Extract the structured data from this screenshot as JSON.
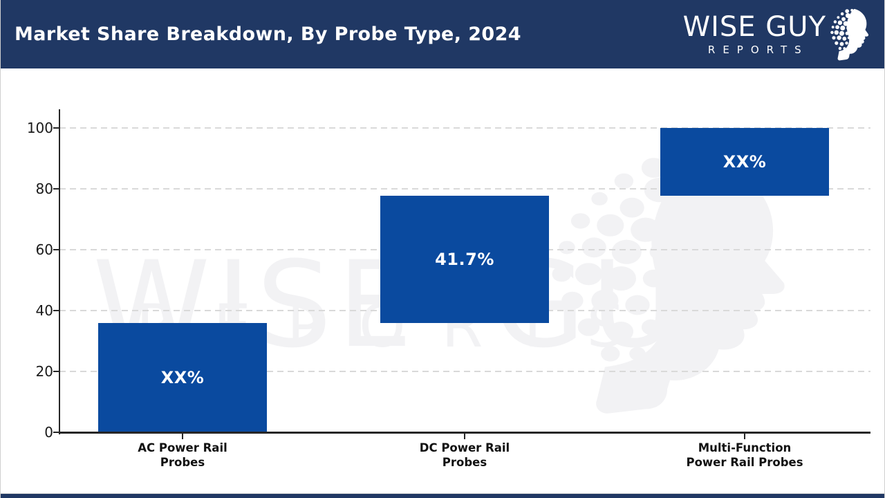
{
  "header": {
    "title": "Market Share Breakdown, By Probe Type, 2024",
    "logo": {
      "wordmark": "WISE GUY",
      "tagline": "REPORTS"
    }
  },
  "watermark": {
    "wordmark": "WISE GUY",
    "tagline": "REPORTS"
  },
  "colors": {
    "banner_bg": "#203864",
    "bar": "#0a4a9f",
    "gridline": "#d9d9d9",
    "axis": "#262626",
    "watermark": "#f2f2f4",
    "title_text": "#ffffff",
    "bar_label_text": "#ffffff",
    "category_label_text": "#111111"
  },
  "chart_data": {
    "type": "bar",
    "variant": "floating-waterfall",
    "title": "Market Share Breakdown, By Probe Type, 2024",
    "categories": [
      "AC Power Rail\nProbes",
      "DC Power Rail\nProbes",
      "Multi-Function\nPower Rail Probes"
    ],
    "bars": [
      {
        "category": "AC Power Rail Probes",
        "start": 0,
        "end": 36,
        "value": 36,
        "label": "XX%"
      },
      {
        "category": "DC Power Rail Probes",
        "start": 36,
        "end": 77.7,
        "value": 41.7,
        "label": "41.7%"
      },
      {
        "category": "Multi-Function Power Rail Probes",
        "start": 77.7,
        "end": 100,
        "value": 22.3,
        "label": "XX%"
      }
    ],
    "xlabel": "",
    "ylabel": "",
    "ylim": [
      0,
      100
    ],
    "yticks": [
      0,
      20,
      40,
      60,
      80,
      100
    ],
    "grid": "horizontal-dashed",
    "legend": "none"
  }
}
